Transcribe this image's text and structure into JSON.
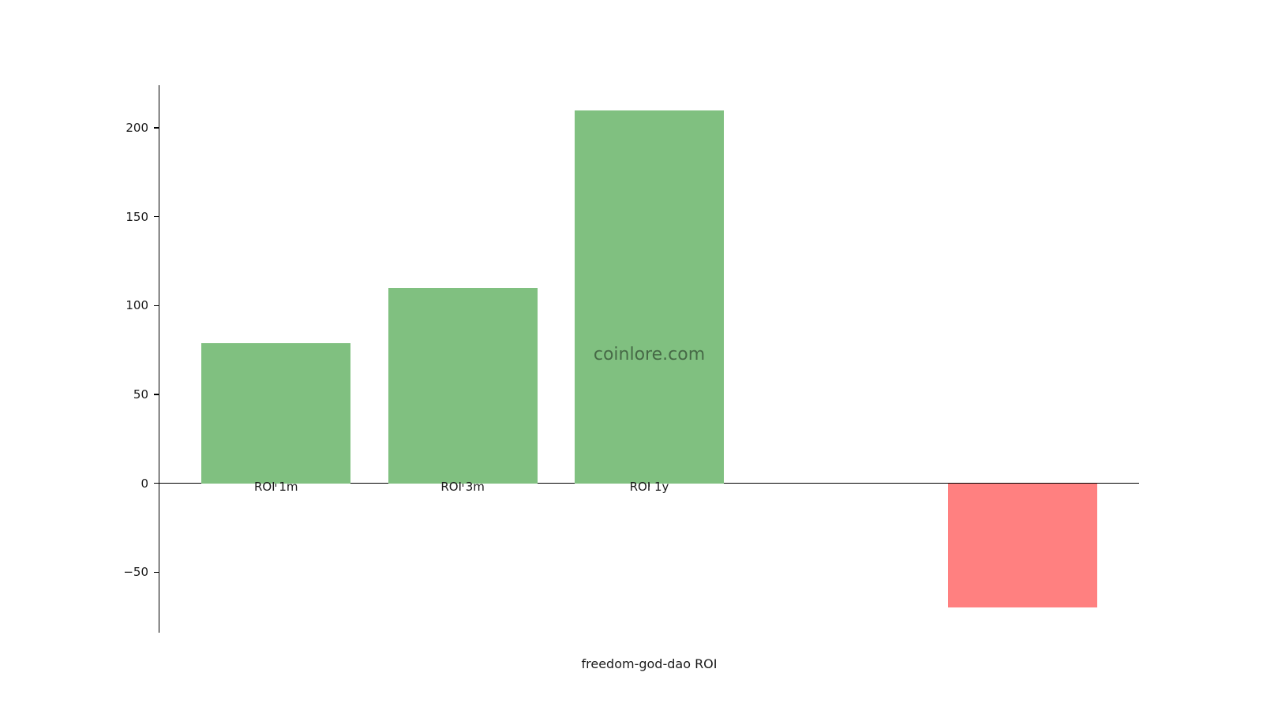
{
  "figure": {
    "background": "#ffffff"
  },
  "chart_data": {
    "type": "bar",
    "title": "",
    "xlabel": "freedom-god-dao ROI",
    "ylabel": "",
    "watermark": "coinlore.com",
    "categories": [
      "ROI 1m",
      "ROI 3m",
      "ROI 1y",
      ""
    ],
    "values": [
      79,
      110,
      210,
      -70
    ],
    "x_positions": [
      0,
      1,
      2,
      4
    ],
    "bar_width": 0.8,
    "bar_colors": [
      "#80c080",
      "#80c080",
      "#80c080",
      "#ff8080"
    ],
    "positive_color": "#80c080",
    "negative_color": "#ff8080",
    "xlim": [
      -0.625,
      4.625
    ],
    "ylim": [
      -84,
      224
    ],
    "yticks": [
      -50,
      0,
      50,
      100,
      150,
      200
    ],
    "ytick_labels": [
      "−50",
      "0",
      "50",
      "100",
      "150",
      "200"
    ],
    "grid": false,
    "legend": "none",
    "axis_color": "#000000",
    "text_color": "#1a1a1a",
    "watermark_color": "rgba(0,0,0,0.45)"
  }
}
